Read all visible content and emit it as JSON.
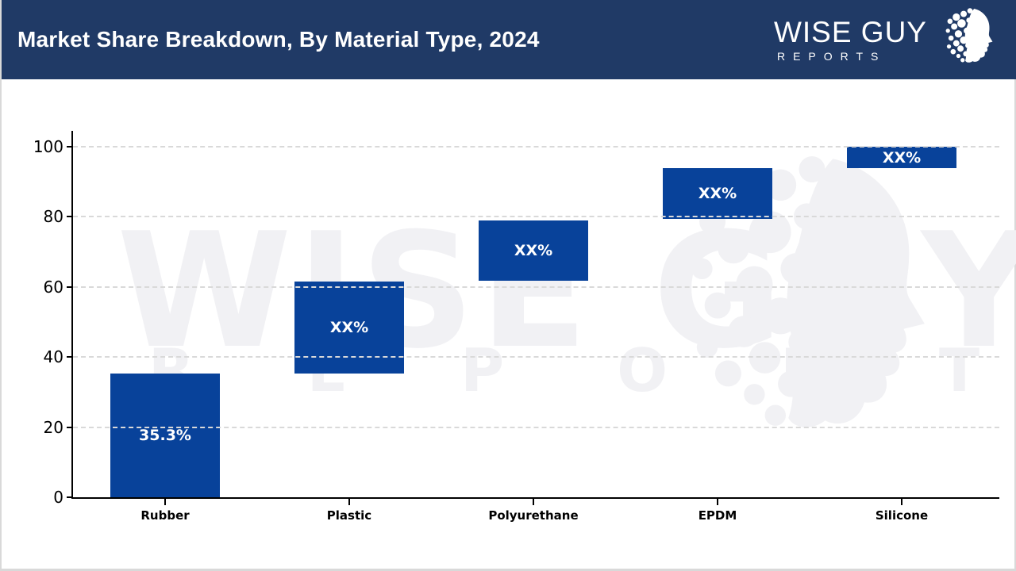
{
  "header": {
    "title": "Market Share Breakdown, By Material Type, 2024",
    "bg_color": "#203a66",
    "logo_line1": "WISE GUY",
    "logo_line2": "REPORTS"
  },
  "watermark": {
    "line1": "WISE GUY",
    "line2": "R E P O R T S"
  },
  "chart_data": {
    "type": "bar",
    "subtype": "floating-waterfall",
    "title": "Market Share Breakdown, By Material Type, 2024",
    "categories": [
      "Rubber",
      "Plastic",
      "Polyurethane",
      "EPDM",
      "Silicone"
    ],
    "segments": [
      {
        "category": "Rubber",
        "start": 0,
        "end": 35.3,
        "label": "35.3%"
      },
      {
        "category": "Plastic",
        "start": 35.3,
        "end": 61.6,
        "label": "XX%"
      },
      {
        "category": "Polyurethane",
        "start": 61.8,
        "end": 79.0,
        "label": "XX%"
      },
      {
        "category": "EPDM",
        "start": 79.4,
        "end": 93.8,
        "label": "XX%"
      },
      {
        "category": "Silicone",
        "start": 93.8,
        "end": 100,
        "label": "XX%"
      }
    ],
    "y_ticks": [
      0,
      20,
      40,
      60,
      80,
      100
    ],
    "ylim": [
      0,
      104.5
    ],
    "xlabel": "",
    "ylabel": "",
    "bar_color": "#08429a",
    "bar_label_color": "#ffffff",
    "grid": "horizontal-dashed",
    "grid_color": "#d9d9d9",
    "legend": "none"
  }
}
